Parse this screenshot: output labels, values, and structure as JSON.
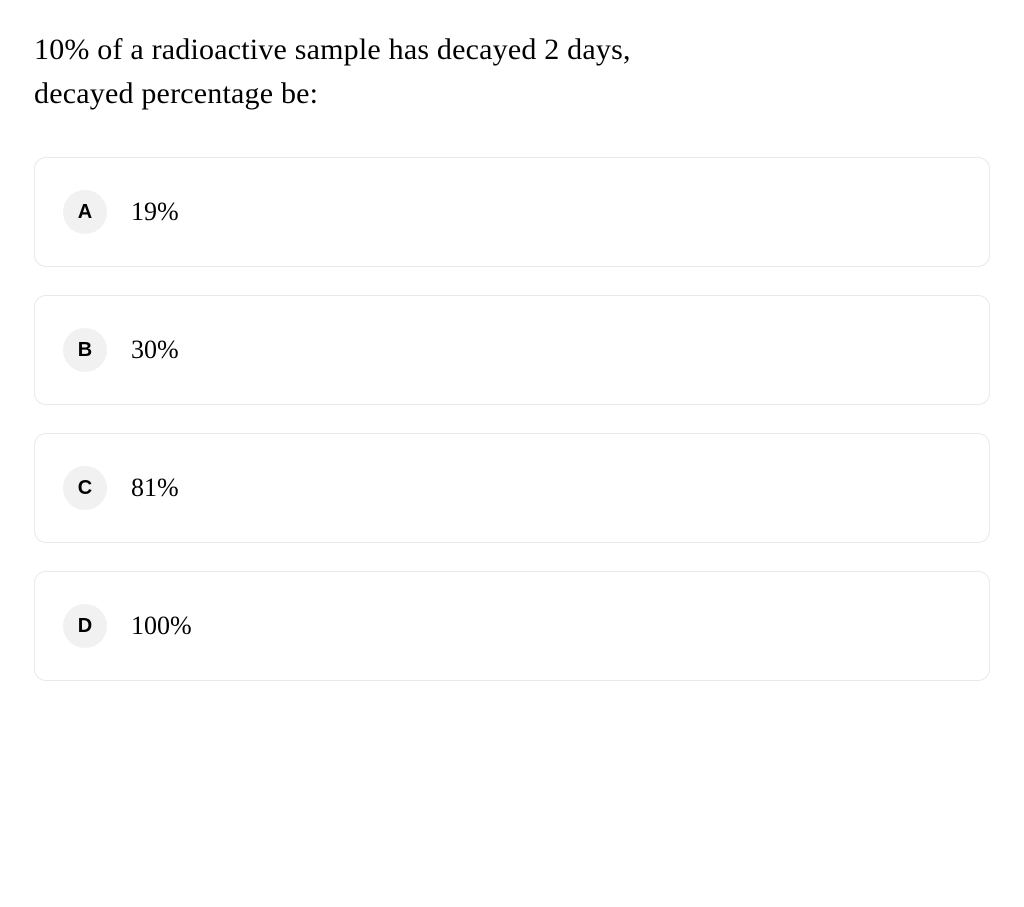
{
  "question": {
    "text_line1": "10% of a radioactive sample has decayed 2 days,",
    "text_line2": "decayed percentage be:",
    "fontsize": 30,
    "color": "#000000"
  },
  "options": [
    {
      "letter": "A",
      "text": "19%"
    },
    {
      "letter": "B",
      "text": "30%"
    },
    {
      "letter": "C",
      "text": "81%"
    },
    {
      "letter": "D",
      "text": "100%"
    }
  ],
  "styles": {
    "background_color": "#ffffff",
    "option_border_color": "#e9e9ea",
    "option_border_radius": 12,
    "option_letter_bg": "#f1f1f2",
    "option_letter_fontsize": 20,
    "option_text_fontsize": 26,
    "option_gap": 28,
    "letter_circle_diameter": 44
  }
}
